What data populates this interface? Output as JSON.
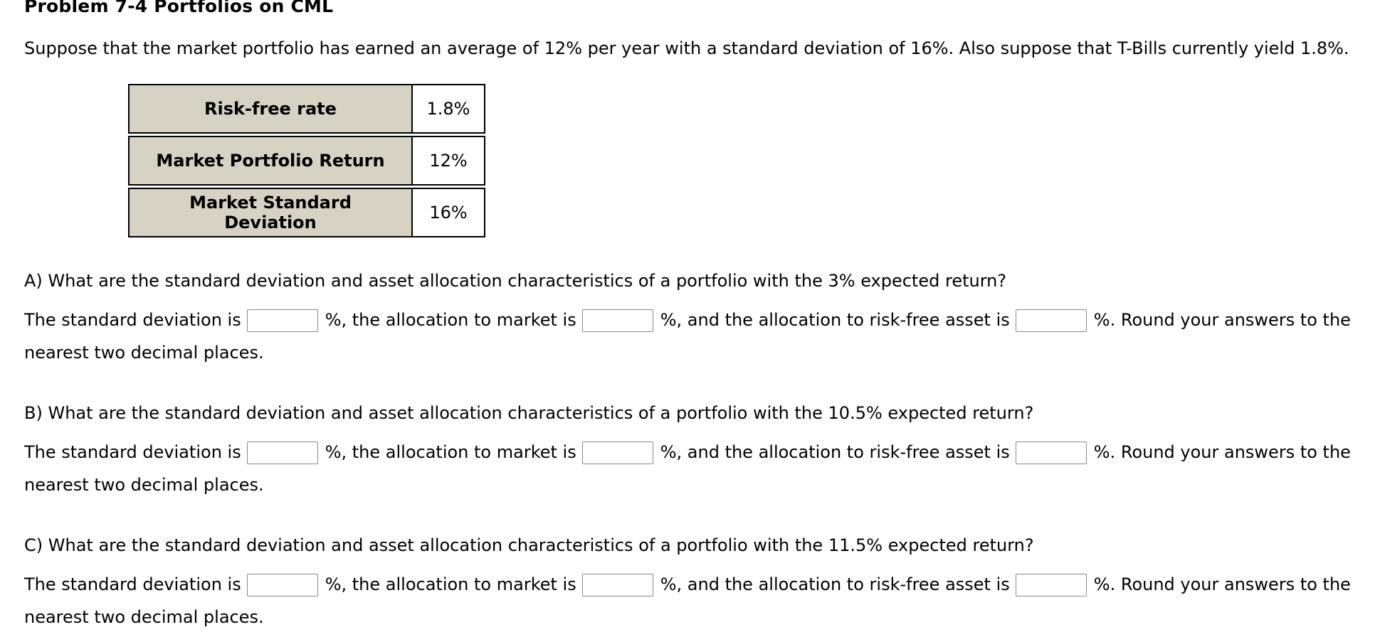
{
  "title": "Problem 7-4 Portfolios on CML",
  "intro": "Suppose that the market portfolio has earned an average of 12% per year with a standard deviation of 16%. Also suppose that T-Bills currently yield 1.8%.",
  "table": {
    "rows": [
      {
        "label": "Risk-free rate",
        "value": "1.8%"
      },
      {
        "label": "Market Portfolio Return",
        "value": "12%"
      },
      {
        "label": "Market Standard Deviation",
        "value": "16%"
      }
    ]
  },
  "questions": [
    {
      "prompt": "A) What are the standard deviation and asset allocation characteristics of a portfolio with the 3% expected return?"
    },
    {
      "prompt": "B) What are the standard deviation and asset allocation characteristics of a portfolio with the 10.5% expected return?"
    },
    {
      "prompt": "C) What are the standard deviation and asset allocation characteristics of a portfolio with the 11.5% expected return?"
    }
  ],
  "answer_template": {
    "seg1": "The standard deviation is",
    "seg2": "%, the allocation to market is",
    "seg3": "%, and the allocation to risk-free asset is",
    "seg4": "%. Round your answers to the nearest two decimal places."
  },
  "colors": {
    "table_label_bg": "#d6d2c4",
    "table_border": "#000000",
    "input_border": "#8a8a8a"
  }
}
